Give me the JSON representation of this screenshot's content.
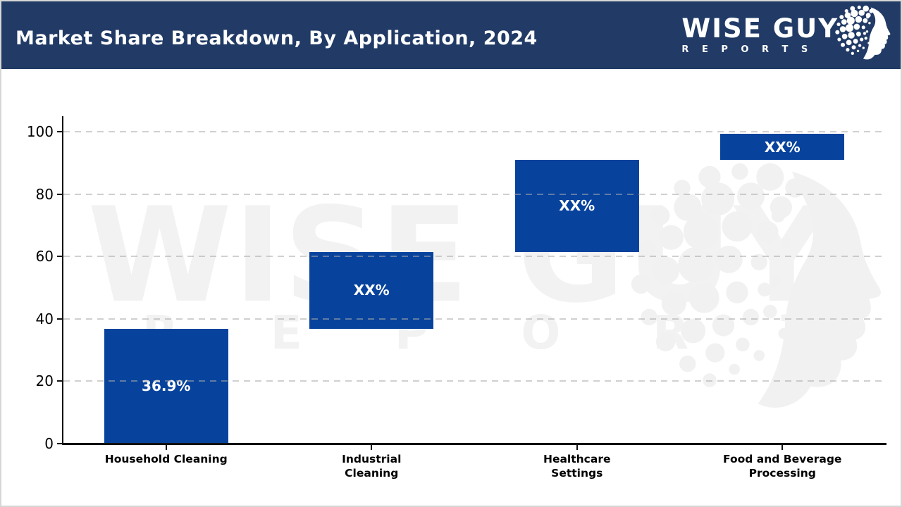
{
  "header": {
    "title": "Market Share Breakdown, By Application, 2024",
    "logo": {
      "line1": "WISE GUY",
      "line2": "R E P O R T S"
    }
  },
  "watermark": {
    "line1": "WISE GUY",
    "line2": "R E P O R T S"
  },
  "colors": {
    "header_bg": "#213a66",
    "bar": "#07439d",
    "bar_label": "#ffffff",
    "gridline": "#d9d9d9",
    "axis": "#111111",
    "watermark": "#f2f2f2"
  },
  "chart_data": {
    "type": "bar",
    "variant": "floating-waterfall",
    "title": "Market Share Breakdown, By Application, 2024",
    "unit": "%",
    "categories": [
      [
        "Household Cleaning"
      ],
      [
        "Industrial",
        "Cleaning"
      ],
      [
        "Healthcare",
        "Settings"
      ],
      [
        "Food and Beverage",
        "Processing"
      ]
    ],
    "segments": [
      {
        "category": "Household Cleaning",
        "start": 0,
        "end": 36.9,
        "label": "36.9%"
      },
      {
        "category": "Industrial Cleaning",
        "start": 36.9,
        "end": 61.5,
        "label": "XX%"
      },
      {
        "category": "Healthcare Settings",
        "start": 61.5,
        "end": 91.0,
        "label": "XX%"
      },
      {
        "category": "Food and Beverage Processing",
        "start": 91.0,
        "end": 99.3,
        "label": "XX%"
      }
    ],
    "yticks": [
      0,
      20,
      40,
      60,
      80,
      100
    ],
    "ylim": [
      0,
      105
    ],
    "grid": "horizontal-dashed",
    "legend": "none"
  }
}
